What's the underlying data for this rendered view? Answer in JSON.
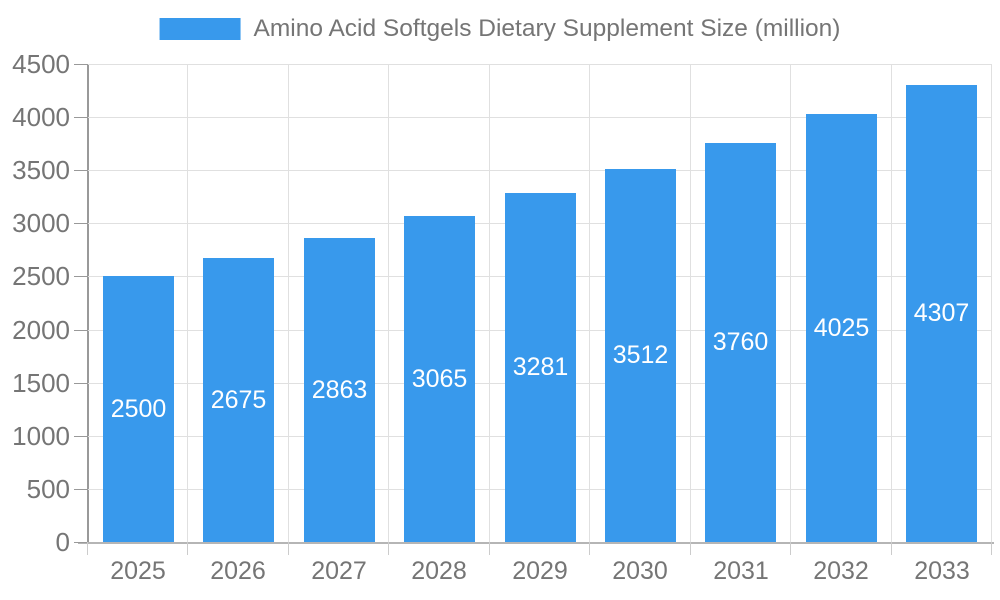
{
  "chart_data": {
    "type": "bar",
    "title": "Amino Acid Softgels Dietary Supplement Size (million)",
    "legend_label": "Amino Acid Softgels Dietary Supplement Size (million)",
    "legend_position": "top-center",
    "categories": [
      "2025",
      "2026",
      "2027",
      "2028",
      "2029",
      "2030",
      "2031",
      "2032",
      "2033"
    ],
    "values": [
      2500,
      2675,
      2863,
      3065,
      3281,
      3512,
      3760,
      4025,
      4307
    ],
    "xlabel": "",
    "ylabel": "",
    "ylim": [
      0,
      4500
    ],
    "ytick_step": 500,
    "yticks": [
      0,
      500,
      1000,
      1500,
      2000,
      2500,
      3000,
      3500,
      4000,
      4500
    ],
    "grid": true,
    "value_labels_inside_bars": true,
    "colors": {
      "bar": "#3899ec",
      "value_label": "#ffffff",
      "axis_text": "#757575",
      "gridline": "#e0e0e0",
      "y_axis_line": "#999999",
      "x_axis_line": "#b5b5b5",
      "x_tick": "#cccccc",
      "y_tick": "#999999"
    }
  }
}
